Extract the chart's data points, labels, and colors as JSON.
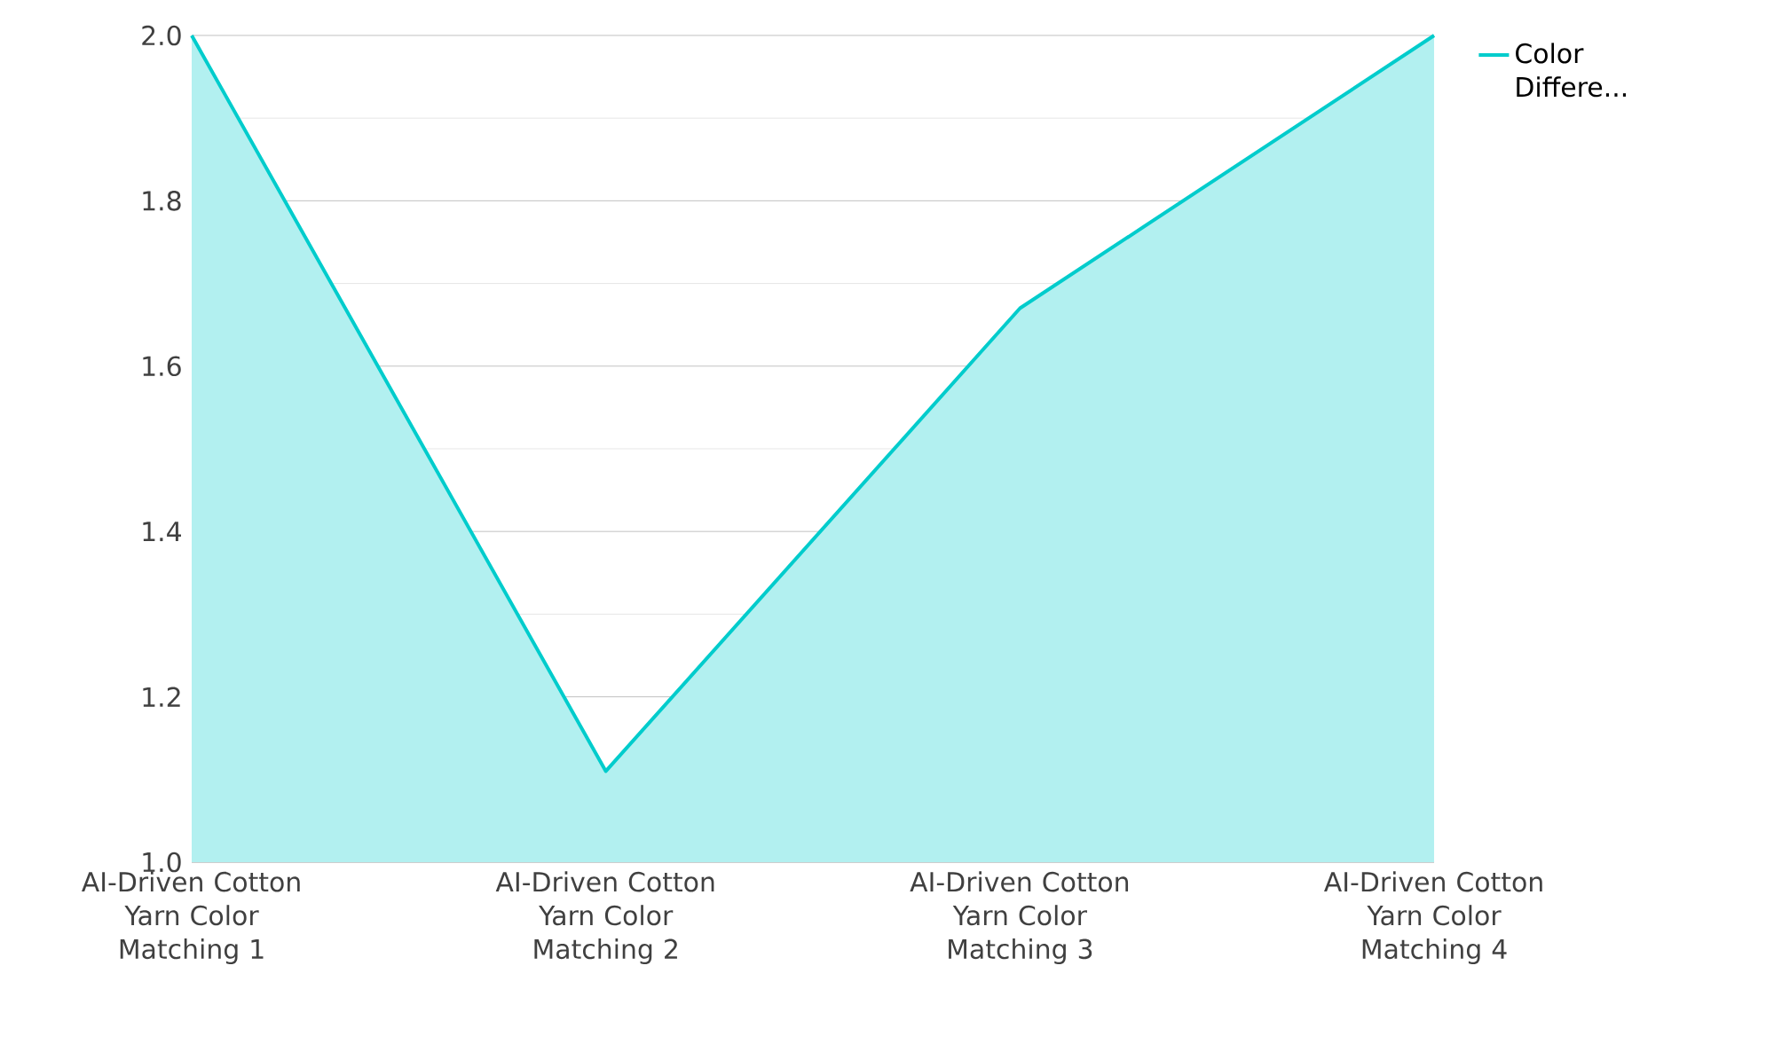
{
  "chart_data": {
    "type": "area",
    "categories": [
      "AI-Driven Cotton Yarn Color Matching 1",
      "AI-Driven Cotton Yarn Color Matching 2",
      "AI-Driven Cotton Yarn Color Matching 3",
      "AI-Driven Cotton Yarn Color Matching 4"
    ],
    "series": [
      {
        "name": "Color Differe...",
        "color": "#00cccc",
        "values": [
          2.0,
          1.11,
          1.67,
          2.0
        ]
      }
    ],
    "ylim": [
      1.0,
      2.0
    ],
    "yticks": [
      {
        "value": 1,
        "label": "1.0"
      },
      1.2,
      1.4,
      1.6,
      1.8,
      {
        "value": 2,
        "label": "2.0"
      }
    ],
    "grid": "y",
    "legend": "top right"
  }
}
